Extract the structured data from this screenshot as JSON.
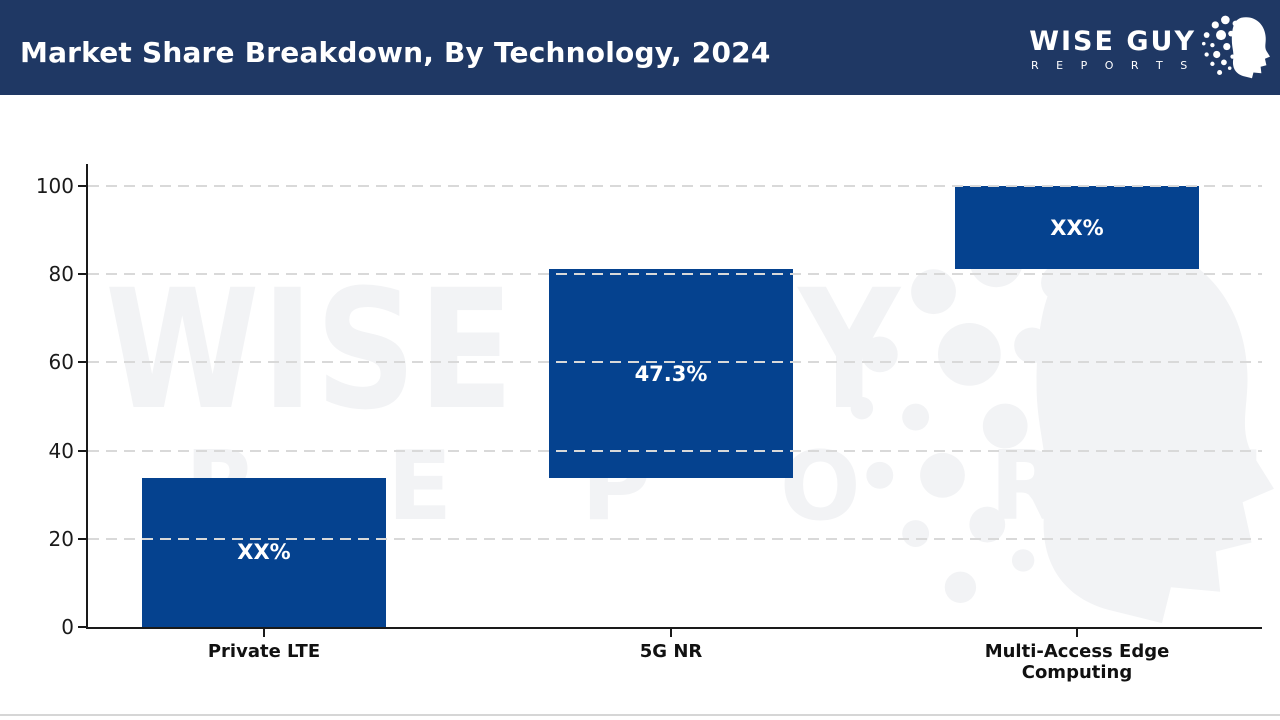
{
  "header": {
    "title": "Market Share Breakdown, By Technology, 2024",
    "bg_color": "#1F3864",
    "logo": {
      "line1": "WISE GUY",
      "line2": "R E P O R T S"
    }
  },
  "watermark": {
    "line1": "WISE GUY",
    "line2": "R E P O R T S"
  },
  "chart_data": {
    "type": "bar",
    "subtype": "waterfall",
    "title": "Market Share Breakdown, By Technology, 2024",
    "categories": [
      "Private LTE",
      "5G NR",
      "Multi-Access Edge Computing"
    ],
    "segments": [
      {
        "category": "Private LTE",
        "start": 0,
        "end": 33.8,
        "label": "XX%"
      },
      {
        "category": "5G NR",
        "start": 33.8,
        "end": 81.1,
        "label": "47.3%"
      },
      {
        "category": "Multi-Access Edge Computing",
        "start": 81.1,
        "end": 100,
        "label": "XX%"
      }
    ],
    "ylim": [
      0,
      100
    ],
    "yticks": [
      0,
      20,
      40,
      60,
      80,
      100
    ],
    "xlabel": "",
    "ylabel": "",
    "grid": "horizontal-dashed",
    "gridline_color": "#d9d9d9",
    "legend": "none",
    "bar_color": "#05428F",
    "bar_label_color": "#ffffff"
  }
}
